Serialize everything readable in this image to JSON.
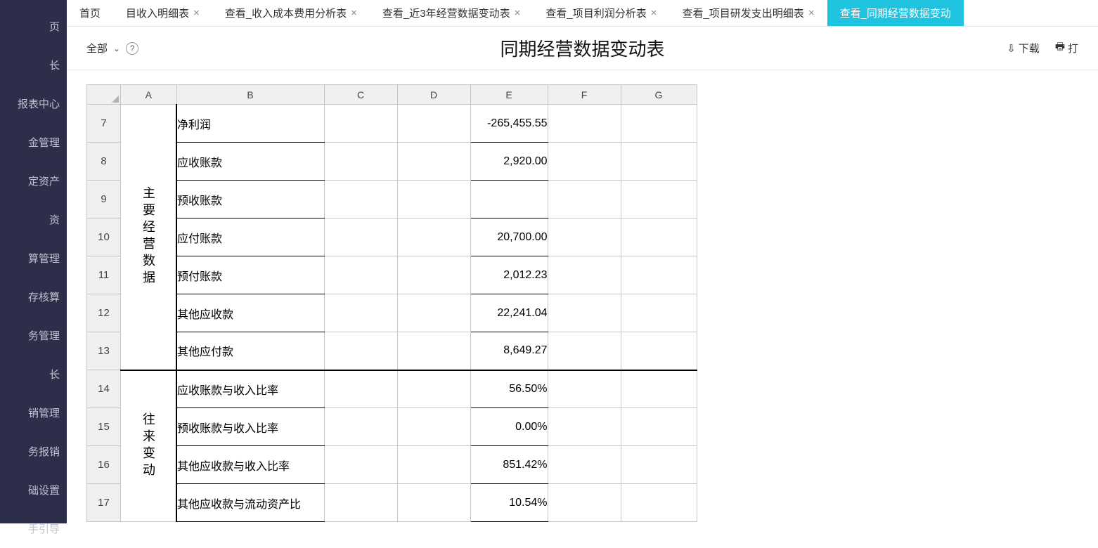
{
  "sidebar": {
    "items": [
      {
        "label": "页"
      },
      {
        "label": "长"
      },
      {
        "label": "报表中心"
      },
      {
        "label": "金管理"
      },
      {
        "label": "定资产"
      },
      {
        "label": "资"
      },
      {
        "label": "算管理"
      },
      {
        "label": "存核算"
      },
      {
        "label": "务管理"
      },
      {
        "label": "长"
      },
      {
        "label": "销管理"
      },
      {
        "label": "务报销"
      },
      {
        "label": "础设置"
      },
      {
        "label": "手引导"
      }
    ]
  },
  "tabs": [
    {
      "label": "首页",
      "closable": false,
      "active": false
    },
    {
      "label": "目收入明细表",
      "closable": true,
      "active": false
    },
    {
      "label": "查看_收入成本费用分析表",
      "closable": true,
      "active": false
    },
    {
      "label": "查看_近3年经营数据变动表",
      "closable": true,
      "active": false
    },
    {
      "label": "查看_项目利润分析表",
      "closable": true,
      "active": false
    },
    {
      "label": "查看_项目研发支出明细表",
      "closable": true,
      "active": false
    },
    {
      "label": "查看_同期经营数据变动",
      "closable": false,
      "active": true
    }
  ],
  "toolbar": {
    "filter_label": "全部",
    "page_title": "同期经营数据变动表",
    "download_label": "下载",
    "print_label": "打"
  },
  "sheet": {
    "col_headers": [
      "A",
      "B",
      "C",
      "D",
      "E",
      "F",
      "G"
    ],
    "row_headers": [
      "7",
      "8",
      "9",
      "10",
      "11",
      "12",
      "13",
      "14",
      "15",
      "16",
      "17"
    ],
    "sectionA_label": "主要经营数据",
    "sectionB_label": "往来变动",
    "rows": [
      {
        "b": "净利润",
        "e": "-265,455.55"
      },
      {
        "b": "应收账款",
        "e": "2,920.00"
      },
      {
        "b": "预收账款",
        "e": ""
      },
      {
        "b": "应付账款",
        "e": "20,700.00"
      },
      {
        "b": "预付账款",
        "e": "2,012.23"
      },
      {
        "b": "其他应收款",
        "e": "22,241.04"
      },
      {
        "b": "其他应付款",
        "e": "8,649.27"
      },
      {
        "b": "应收账款与收入比率",
        "e": "56.50%"
      },
      {
        "b": "预收账款与收入比率",
        "e": "0.00%"
      },
      {
        "b": "其他应收款与收入比率",
        "e": "851.42%"
      },
      {
        "b": "其他应收款与流动资产比",
        "e": "10.54%"
      }
    ]
  }
}
